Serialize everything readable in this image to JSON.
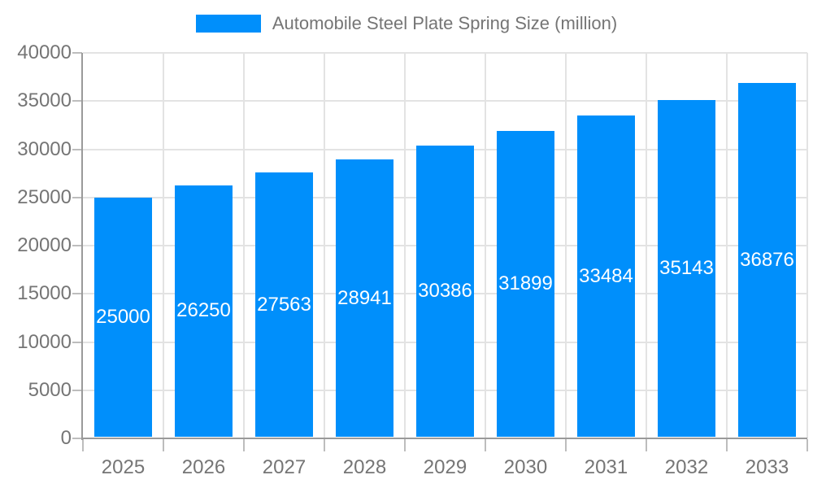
{
  "chart_data": {
    "type": "bar",
    "title": "",
    "legend": "Automobile Steel Plate Spring Size (million)",
    "legend_position": "top",
    "categories": [
      "2025",
      "2026",
      "2027",
      "2028",
      "2029",
      "2030",
      "2031",
      "2032",
      "2033"
    ],
    "values": [
      25000,
      26250,
      27563,
      28941,
      30386,
      31899,
      33484,
      35143,
      36876
    ],
    "value_labels": [
      "25000",
      "26250",
      "27563",
      "28941",
      "30386",
      "31899",
      "33484",
      "35143",
      "36876"
    ],
    "xlabel": "",
    "ylabel": "",
    "ylim": [
      0,
      40000
    ],
    "ytick_step": 5000,
    "ytick_labels": [
      "0",
      "5000",
      "10000",
      "15000",
      "20000",
      "25000",
      "30000",
      "35000",
      "40000"
    ],
    "grid": true,
    "colors": {
      "bar": "#008FFB",
      "axis_line": "#9a9a9a",
      "tick": "#bdbdbd",
      "gridline": "#e3e3e3",
      "axis_label": "#757575",
      "legend_label": "#757575",
      "value_label": "#ffffff",
      "background": "#ffffff"
    }
  }
}
